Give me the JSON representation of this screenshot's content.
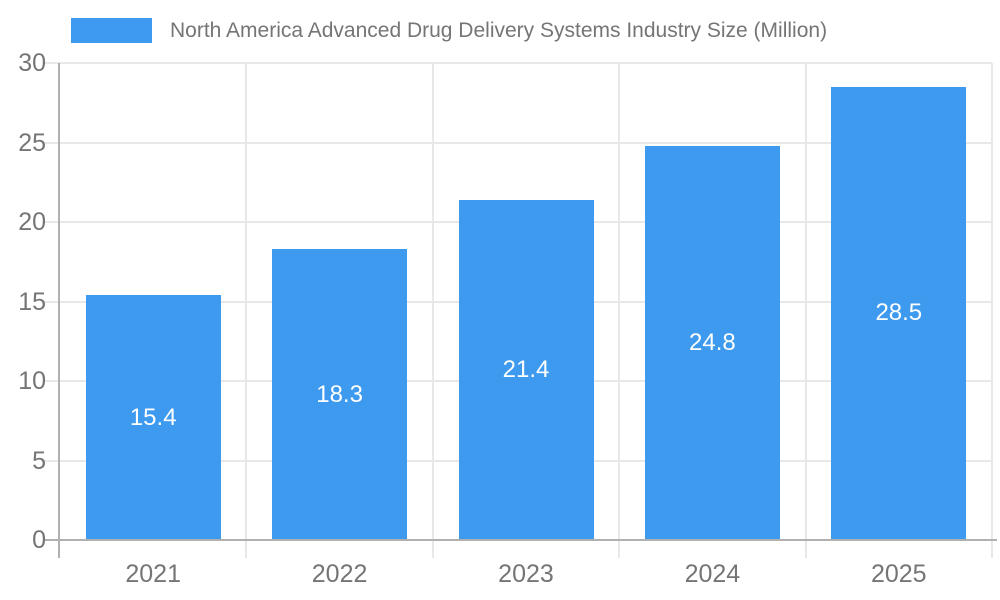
{
  "chart_data": {
    "type": "bar",
    "title": "North America Advanced Drug Delivery Systems Industry Size (Million)",
    "categories": [
      "2021",
      "2022",
      "2023",
      "2024",
      "2025"
    ],
    "values": [
      15.4,
      18.3,
      21.4,
      24.8,
      28.5
    ],
    "data_labels": [
      "15.4",
      "18.3",
      "21.4",
      "24.8",
      "28.5"
    ],
    "xlabel": "",
    "ylabel": "",
    "ylim": [
      0,
      30
    ],
    "yticks": [
      0,
      5,
      10,
      15,
      20,
      25,
      30
    ],
    "ytick_labels": [
      "0",
      "5",
      "10",
      "15",
      "20",
      "25",
      "30"
    ],
    "grid": true,
    "legend_position": "top-left",
    "colors": {
      "bar": "#3d9aee",
      "data_label": "#ffffff",
      "axis_text": "#757575",
      "legend_text": "#757575",
      "gridline": "#e8e8e8",
      "axis_line": "#b0b0b0",
      "background": "#ffffff"
    }
  }
}
